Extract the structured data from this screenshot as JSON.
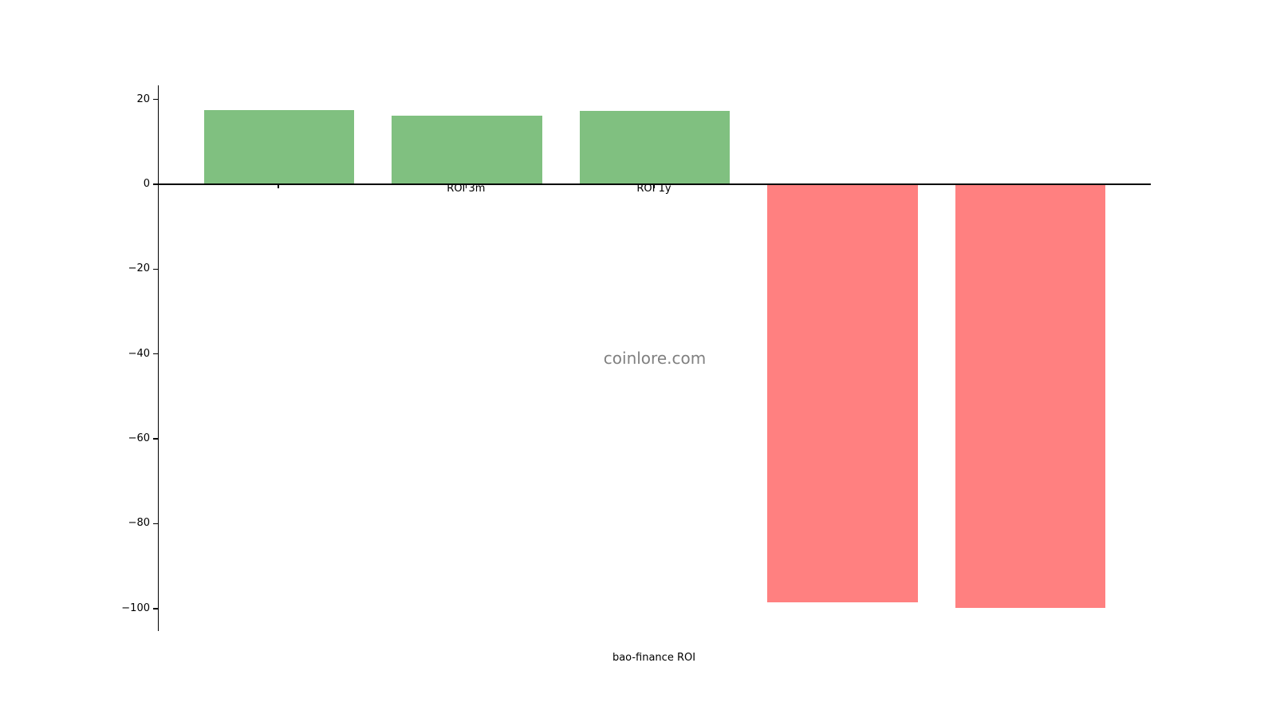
{
  "watermark": "coinlore.com",
  "chart_data": {
    "type": "bar",
    "categories": [
      "",
      "ROI 3m",
      "ROI 1y",
      "",
      ""
    ],
    "values": [
      17.4,
      16.1,
      17.3,
      -98.6,
      -99.8
    ],
    "title": "bao-finance ROI",
    "xlabel": "bao-finance ROI",
    "ylabel": "",
    "yticks": [
      20,
      0,
      -20,
      -40,
      -60,
      -80,
      -100
    ],
    "ylim": [
      -105.3,
      23.3
    ],
    "bar_width_ratio": 0.8,
    "x_margin": 0.05,
    "grid": false,
    "legend": false,
    "visible_x_tick_indices": [
      0,
      1,
      2
    ],
    "positive_color": "#80c080",
    "negative_color": "#ff8080",
    "axis_color": "#000000",
    "tick_text_color": "#000000",
    "watermark_color": "#808080"
  }
}
